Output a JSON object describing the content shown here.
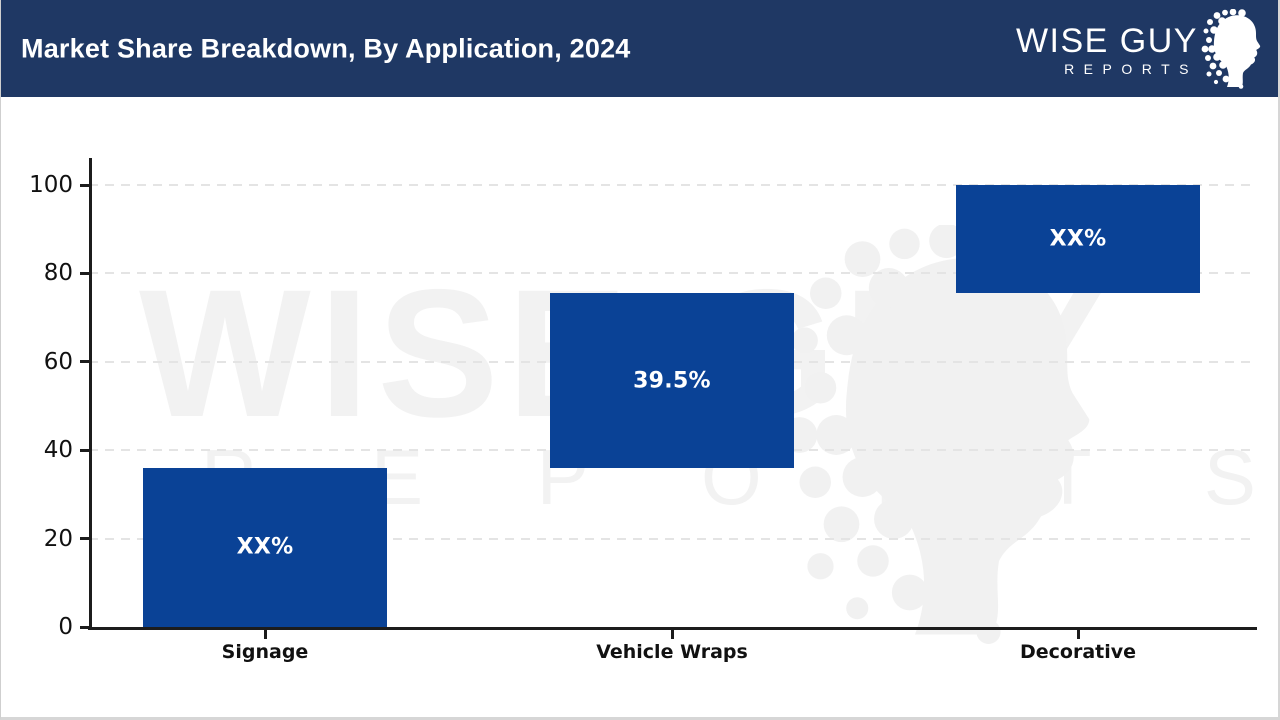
{
  "header": {
    "title": "Market Share Breakdown, By Application, 2024",
    "brand_line1": "WISE GUY",
    "brand_line2": "REPORTS"
  },
  "watermark": {
    "line1": "WISE GUY",
    "line2": "R E P O R T S"
  },
  "colors": {
    "header_bg": "#1f3864",
    "bar": "#0a4296",
    "axis": "#1c1c1c",
    "gridline": "#e4e4e4",
    "watermark": "#f2f2f2",
    "bar_label": "#ffffff"
  },
  "chart_data": {
    "type": "bar",
    "variant": "floating-waterfall-breakdown",
    "title": "Market Share Breakdown, By Application, 2024",
    "categories": [
      "Signage",
      "Vehicle Wraps",
      "Decorative"
    ],
    "segments": [
      {
        "category": "Signage",
        "start": 0,
        "end": 36,
        "label": "XX%"
      },
      {
        "category": "Vehicle Wraps",
        "start": 36,
        "end": 75.5,
        "label": "39.5%"
      },
      {
        "category": "Decorative",
        "start": 75.5,
        "end": 100,
        "label": "XX%"
      }
    ],
    "yticks": [
      0,
      20,
      40,
      60,
      80,
      100
    ],
    "ylim": [
      0,
      106
    ],
    "xlabel": "",
    "ylabel": "",
    "grid": "horizontal-dashed",
    "legend": "none",
    "bar_color": "#0a4296",
    "bar_label_color": "#ffffff"
  }
}
